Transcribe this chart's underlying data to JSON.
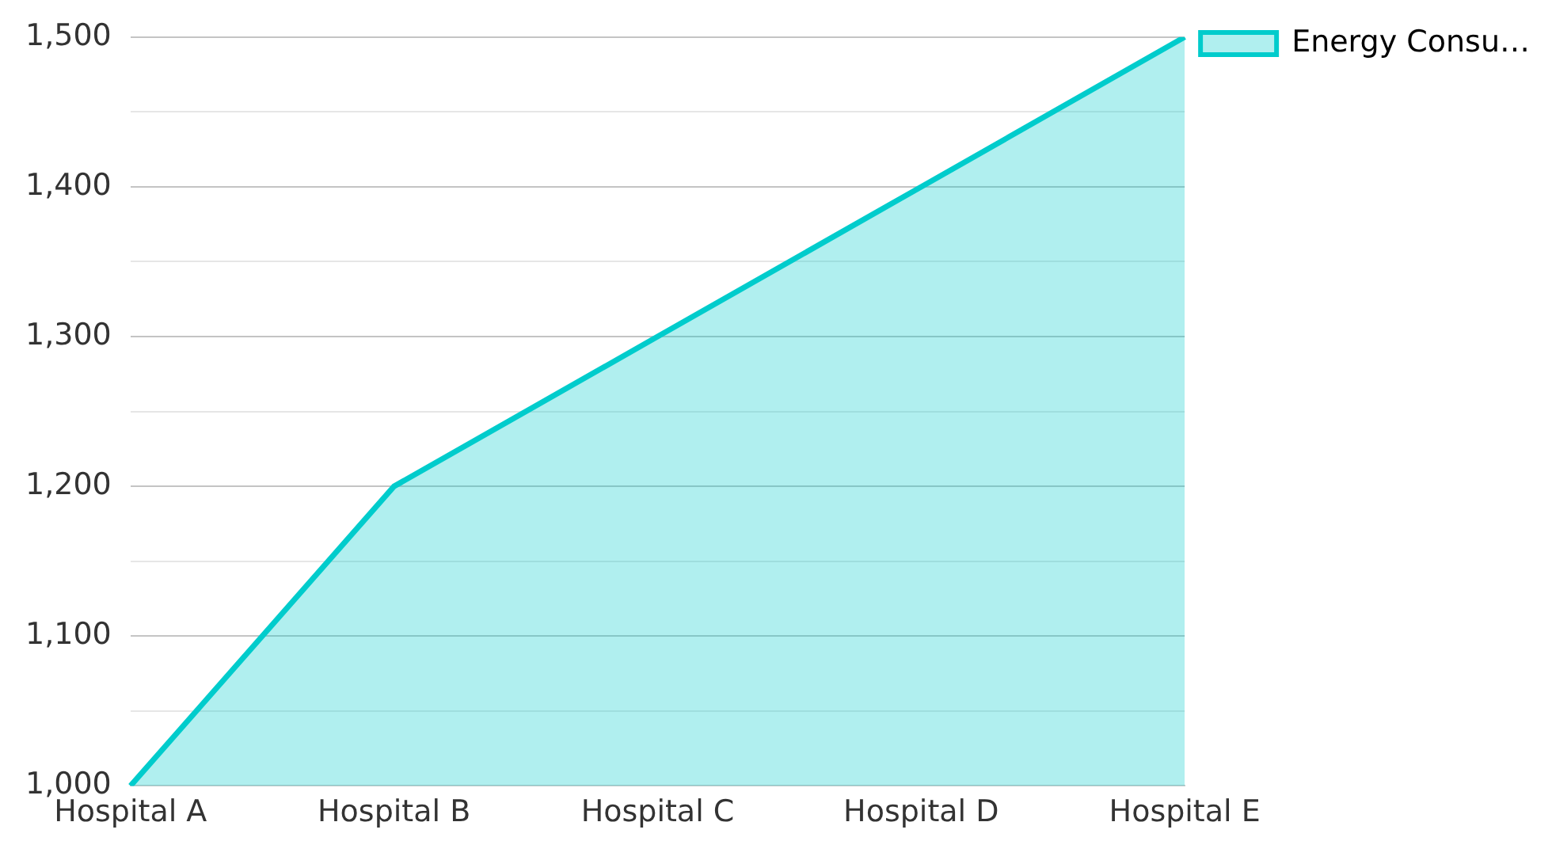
{
  "chart_data": {
    "type": "area",
    "categories": [
      "Hospital A",
      "Hospital B",
      "Hospital C",
      "Hospital D",
      "Hospital E"
    ],
    "series": [
      {
        "name": "Energy Consu…",
        "color": "#00cccc",
        "values": [
          1000,
          1200,
          1300,
          1400,
          1500
        ]
      }
    ],
    "ylim": [
      1000,
      1500
    ],
    "yticks": [
      {
        "value": 1000,
        "label": "1,000"
      },
      {
        "value": 1050,
        "label": null
      },
      {
        "value": 1100,
        "label": "1,100"
      },
      {
        "value": 1150,
        "label": null
      },
      {
        "value": 1200,
        "label": "1,200"
      },
      {
        "value": 1250,
        "label": null
      },
      {
        "value": 1300,
        "label": "1,300"
      },
      {
        "value": 1350,
        "label": null
      },
      {
        "value": 1400,
        "label": "1,400"
      },
      {
        "value": 1450,
        "label": null
      },
      {
        "value": 1500,
        "label": "1,500"
      }
    ],
    "grid": "y",
    "legend": "top right",
    "marker": "none",
    "line_style": "solid"
  }
}
